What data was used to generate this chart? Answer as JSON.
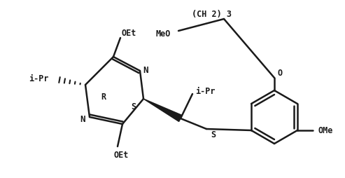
{
  "background_color": "#ffffff",
  "line_color": "#1a1a1a",
  "text_color": "#1a1a1a",
  "figsize": [
    4.93,
    2.55
  ],
  "dpi": 100,
  "labels": {
    "OEt_top": "OEt",
    "OEt_bottom": "OEt",
    "i_Pr_left": "i-Pr",
    "i_Pr_right": "i-Pr",
    "R": "R",
    "S_ring": "S",
    "S_chain": "S",
    "N_top": "N",
    "N_bottom": "N",
    "MeO": "MeO",
    "CH2_3": "(CH 2) 3",
    "O_right": "O",
    "OMe": "OMe"
  }
}
